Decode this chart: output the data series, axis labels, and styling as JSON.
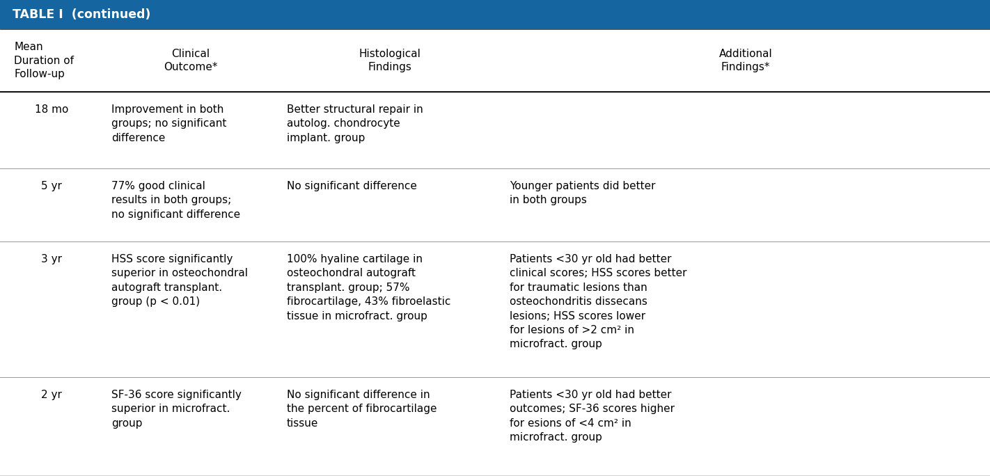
{
  "title": "TABLE I  (continued)",
  "title_bg_color": "#1565a0",
  "title_text_color": "#ffffff",
  "col_headers": [
    "Mean\nDuration of\nFollow-up",
    "Clinical\nOutcome*",
    "Histological\nFindings",
    "Additional\nFindings*"
  ],
  "col_header_align": [
    "left",
    "center",
    "center",
    "center"
  ],
  "rows": [
    {
      "col0": "18 mo",
      "col1": "Improvement in both\ngroups; no significant\ndifference",
      "col2": "Better structural repair in\nautolog. chondrocyte\nimplant. group",
      "col3": ""
    },
    {
      "col0": "5 yr",
      "col1": "77% good clinical\nresults in both groups;\nno significant difference",
      "col2": "No significant difference",
      "col3": "Younger patients did better\nin both groups"
    },
    {
      "col0": "3 yr",
      "col1": "HSS score significantly\nsuperior in osteochondral\nautograft transplant.\ngroup (p < 0.01)",
      "col2": "100% hyaline cartilage in\nosteochondral autograft\ntransplant. group; 57%\nfibrocartilage, 43% fibroelastic\ntissue in microfract. group",
      "col3": "Patients <30 yr old had better\nclinical scores; HSS scores better\nfor traumatic lesions than\nosteochondritis dissecans\nlesions; HSS scores lower\nfor lesions of >2 cm² in\nmicrofract. group"
    },
    {
      "col0": "2 yr",
      "col1": "SF-36 score significantly\nsuperior in microfract.\ngroup",
      "col2": "No significant difference in\nthe percent of fibrocartilage\ntissue",
      "col3": "Patients <30 yr old had better\noutcomes; SF-36 scores higher\nfor esions of <4 cm² in\nmicrofract. group"
    }
  ],
  "figsize": [
    14.22,
    6.84
  ],
  "dpi": 100,
  "font_size": 11.0,
  "header_font_size": 11.0,
  "title_font_size": 12.5
}
